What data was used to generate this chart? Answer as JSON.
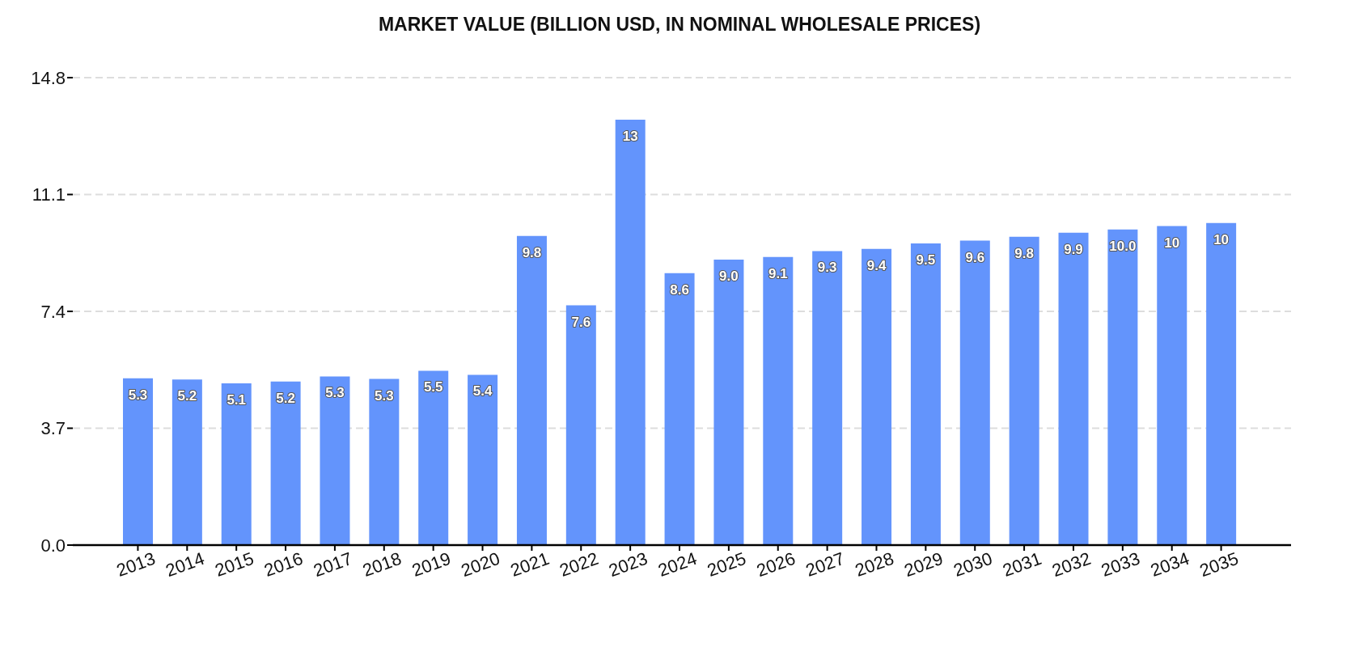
{
  "chart_data": {
    "type": "bar",
    "title": "MARKET VALUE (BILLION USD, IN NOMINAL WHOLESALE PRICES)",
    "categories": [
      "2013",
      "2014",
      "2015",
      "2016",
      "2017",
      "2018",
      "2019",
      "2020",
      "2021",
      "2022",
      "2023",
      "2024",
      "2025",
      "2026",
      "2027",
      "2028",
      "2029",
      "2030",
      "2031",
      "2032",
      "2033",
      "2034",
      "2035"
    ],
    "values": [
      5.28,
      5.24,
      5.12,
      5.18,
      5.34,
      5.26,
      5.52,
      5.39,
      9.79,
      7.59,
      13.47,
      8.61,
      9.04,
      9.12,
      9.31,
      9.38,
      9.55,
      9.64,
      9.76,
      9.89,
      9.99,
      10.1,
      10.2
    ],
    "value_labels": [
      "5.3",
      "5.2",
      "5.1",
      "5.2",
      "5.3",
      "5.3",
      "5.5",
      "5.4",
      "9.8",
      "7.6",
      "13",
      "8.6",
      "9.0",
      "9.1",
      "9.3",
      "9.4",
      "9.5",
      "9.6",
      "9.8",
      "9.9",
      "10.0",
      "10",
      "10"
    ],
    "color": "#6394fc",
    "ylim": [
      0,
      14.8
    ],
    "yticks": [
      {
        "value": 0,
        "label": "0.0"
      },
      3.7,
      7.4,
      11.1,
      14.8
    ],
    "grid": "y"
  }
}
